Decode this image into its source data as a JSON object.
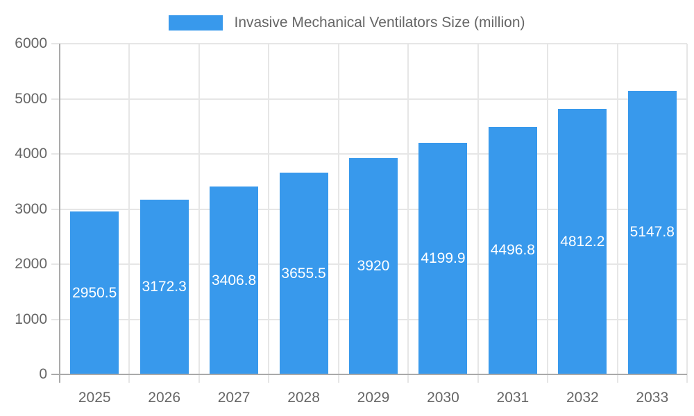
{
  "legend": {
    "label": "Invasive Mechanical Ventilators Size (million)"
  },
  "chart_data": {
    "type": "bar",
    "title": "",
    "xlabel": "",
    "ylabel": "",
    "categories": [
      "2025",
      "2026",
      "2027",
      "2028",
      "2029",
      "2030",
      "2031",
      "2032",
      "2033"
    ],
    "values": [
      2950.5,
      3172.3,
      3406.8,
      3655.5,
      3920,
      4199.9,
      4496.8,
      4812.2,
      5147.8
    ],
    "value_labels": [
      "2950.5",
      "3172.3",
      "3406.8",
      "3655.5",
      "3920",
      "4199.9",
      "4496.8",
      "4812.2",
      "5147.8"
    ],
    "series_name": "Invasive Mechanical Ventilators Size (million)",
    "ylim": [
      0,
      6000
    ],
    "yticks": [
      0,
      1000,
      2000,
      3000,
      4000,
      5000,
      6000
    ],
    "ytick_labels": [
      "0",
      "1000",
      "2000",
      "3000",
      "4000",
      "5000",
      "6000"
    ],
    "grid": true,
    "legend_position": "top"
  },
  "colors": {
    "bar": "#3899ec",
    "grid": "#e6e6e6",
    "axis": "#aaaaaa",
    "tick_text": "#666666",
    "value_label_text": "#ffffff",
    "background": "#ffffff"
  }
}
